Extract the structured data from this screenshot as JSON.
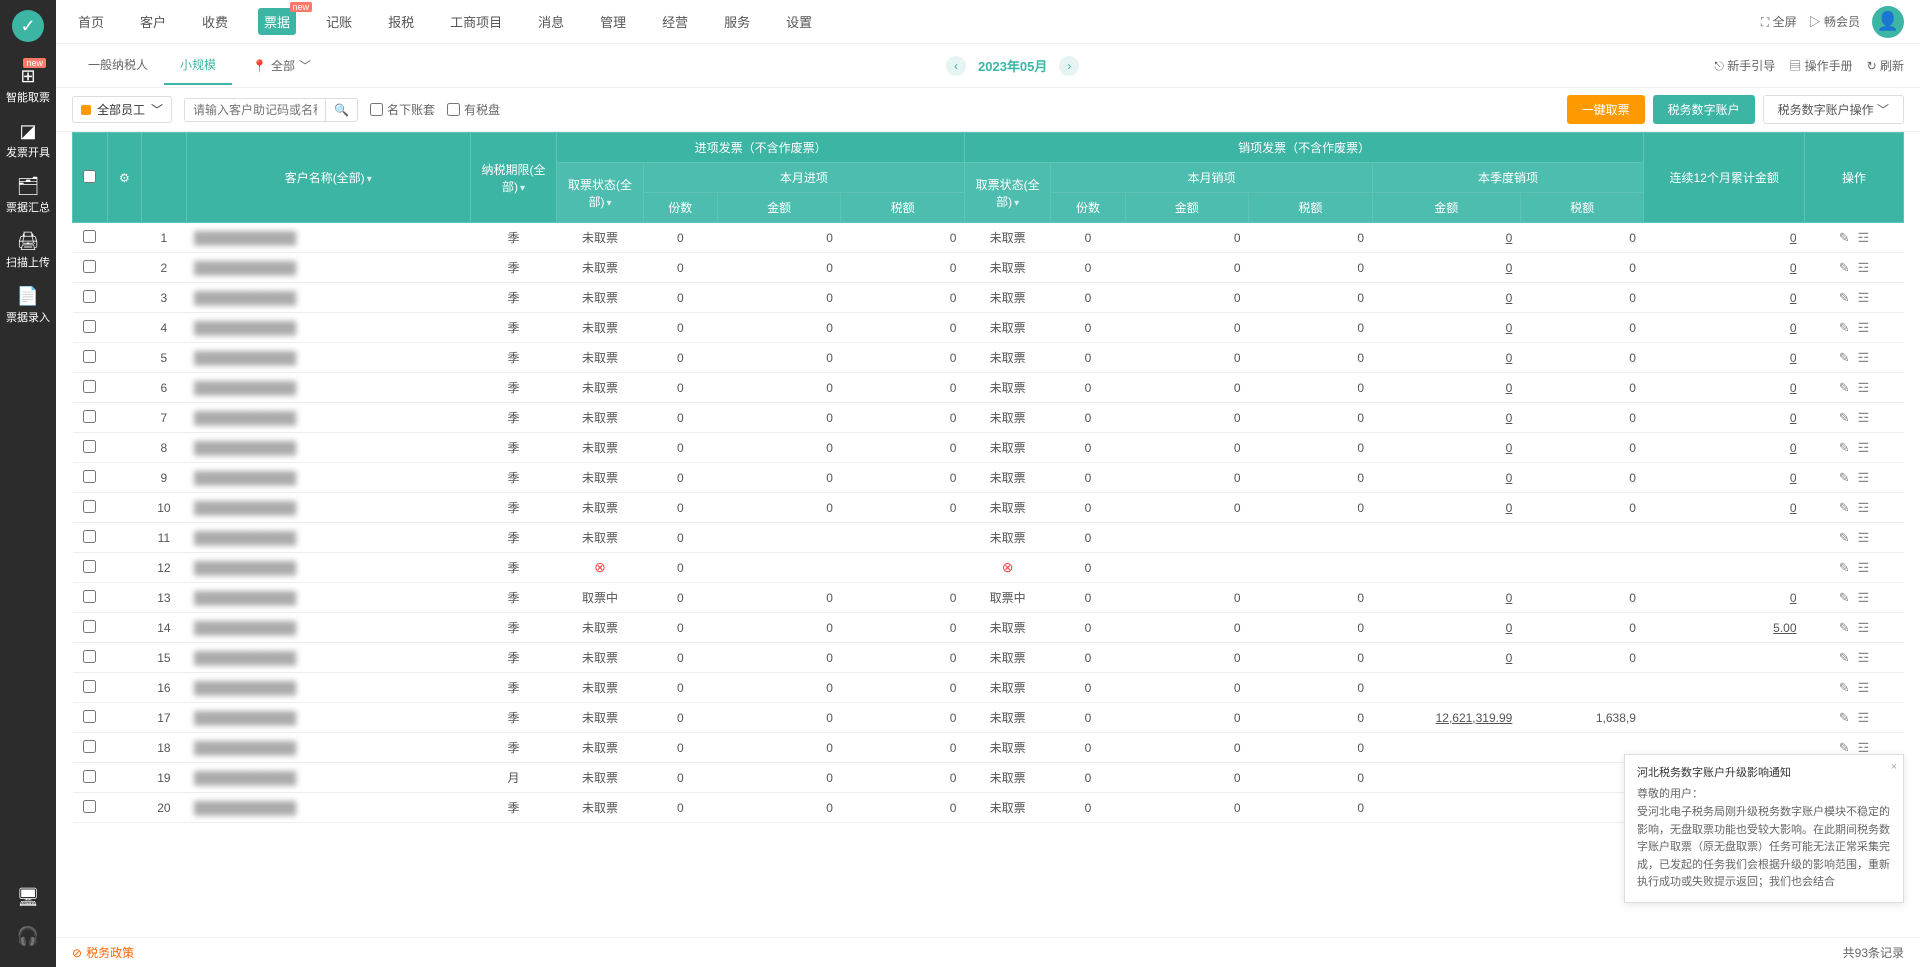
{
  "sidebar": {
    "items": [
      {
        "icon": "⊞",
        "label": "智能取票",
        "badge": "new"
      },
      {
        "icon": "◪",
        "label": "发票开具"
      },
      {
        "icon": "🗂",
        "label": "票据汇总"
      },
      {
        "icon": "🖨",
        "label": "扫描上传"
      },
      {
        "icon": "📄",
        "label": "票据录入"
      }
    ],
    "bottom": [
      {
        "icon": "🖥"
      },
      {
        "icon": "🎧"
      }
    ]
  },
  "topnav": {
    "items": [
      "首页",
      "客户",
      "收费",
      "票据",
      "记账",
      "报税",
      "工商项目",
      "消息",
      "管理",
      "经营",
      "服务",
      "设置"
    ],
    "active_index": 3,
    "badge_index": 3,
    "badge_text": "new",
    "right": {
      "fullscreen": "全屏",
      "member": "畅会员"
    }
  },
  "subnav": {
    "tabs": [
      "一般纳税人",
      "小规模"
    ],
    "active_tab": 1,
    "region_label": "全部",
    "period": "2023年05月",
    "right": {
      "guide": "新手引导",
      "manual": "操作手册",
      "refresh": "刷新"
    }
  },
  "toolbar": {
    "employee_select": "全部员工",
    "search_placeholder": "请输入客户助记码或名称",
    "chk1": "名下账套",
    "chk2": "有税盘",
    "btn_fetch": "一键取票",
    "btn_digital": "税务数字账户",
    "btn_ops": "税务数字账户操作"
  },
  "table": {
    "headers": {
      "customer": "客户名称(全部)",
      "tax_period": "纳税期限(全部)",
      "in_invoice_group": "进项发票（不含作废票）",
      "out_invoice_group": "销项发票（不含作废票）",
      "fetch_status": "取票状态(全部)",
      "month_in": "本月进项",
      "month_out": "本月销项",
      "quarter_out": "本季度销项",
      "count": "份数",
      "amount": "金额",
      "tax": "税额",
      "cumulative": "连续12个月累计金额",
      "actions": "操作"
    },
    "rows": [
      {
        "idx": 1,
        "period": "季",
        "status_in": "未取票",
        "status_out": "未取票",
        "c1": 0,
        "a1": "0",
        "t1": "0",
        "c2": 0,
        "a2": "0",
        "t2": "0",
        "qa": "0",
        "qt": "0",
        "cum": "0"
      },
      {
        "idx": 2,
        "period": "季",
        "status_in": "未取票",
        "status_out": "未取票",
        "c1": 0,
        "a1": "0",
        "t1": "0",
        "c2": 0,
        "a2": "0",
        "t2": "0",
        "qa": "0",
        "qt": "0",
        "cum": "0"
      },
      {
        "idx": 3,
        "period": "季",
        "status_in": "未取票",
        "status_out": "未取票",
        "c1": 0,
        "a1": "0",
        "t1": "0",
        "c2": 0,
        "a2": "0",
        "t2": "0",
        "qa": "0",
        "qt": "0",
        "cum": "0"
      },
      {
        "idx": 4,
        "period": "季",
        "status_in": "未取票",
        "status_out": "未取票",
        "c1": 0,
        "a1": "0",
        "t1": "0",
        "c2": 0,
        "a2": "0",
        "t2": "0",
        "qa": "0",
        "qt": "0",
        "cum": "0"
      },
      {
        "idx": 5,
        "period": "季",
        "status_in": "未取票",
        "status_out": "未取票",
        "c1": 0,
        "a1": "0",
        "t1": "0",
        "c2": 0,
        "a2": "0",
        "t2": "0",
        "qa": "0",
        "qt": "0",
        "cum": "0"
      },
      {
        "idx": 6,
        "period": "季",
        "status_in": "未取票",
        "status_out": "未取票",
        "c1": 0,
        "a1": "0",
        "t1": "0",
        "c2": 0,
        "a2": "0",
        "t2": "0",
        "qa": "0",
        "qt": "0",
        "cum": "0"
      },
      {
        "idx": 7,
        "period": "季",
        "status_in": "未取票",
        "status_out": "未取票",
        "c1": 0,
        "a1": "0",
        "t1": "0",
        "c2": 0,
        "a2": "0",
        "t2": "0",
        "qa": "0",
        "qt": "0",
        "cum": "0"
      },
      {
        "idx": 8,
        "period": "季",
        "status_in": "未取票",
        "status_out": "未取票",
        "c1": 0,
        "a1": "0",
        "t1": "0",
        "c2": 0,
        "a2": "0",
        "t2": "0",
        "qa": "0",
        "qt": "0",
        "cum": "0"
      },
      {
        "idx": 9,
        "period": "季",
        "status_in": "未取票",
        "status_out": "未取票",
        "c1": 0,
        "a1": "0",
        "t1": "0",
        "c2": 0,
        "a2": "0",
        "t2": "0",
        "qa": "0",
        "qt": "0",
        "cum": "0"
      },
      {
        "idx": 10,
        "period": "季",
        "status_in": "未取票",
        "status_out": "未取票",
        "c1": 0,
        "a1": "0",
        "t1": "0",
        "c2": 0,
        "a2": "0",
        "t2": "0",
        "qa": "0",
        "qt": "0",
        "cum": "0"
      },
      {
        "idx": 11,
        "period": "季",
        "status_in": "未取票",
        "status_out": "未取票",
        "c1": 0,
        "a1": "",
        "t1": "",
        "c2": 0,
        "a2": "",
        "t2": "",
        "qa": "",
        "qt": "",
        "cum": ""
      },
      {
        "idx": 12,
        "period": "季",
        "status_in": "error",
        "status_out": "error",
        "c1": 0,
        "a1": "",
        "t1": "",
        "c2": 0,
        "a2": "",
        "t2": "",
        "qa": "",
        "qt": "",
        "cum": ""
      },
      {
        "idx": 13,
        "period": "季",
        "status_in": "取票中",
        "status_out": "取票中",
        "c1": 0,
        "a1": "0",
        "t1": "0",
        "c2": 0,
        "a2": "0",
        "t2": "0",
        "qa": "0",
        "qt": "0",
        "cum": "0"
      },
      {
        "idx": 14,
        "period": "季",
        "status_in": "未取票",
        "status_out": "未取票",
        "c1": 0,
        "a1": "0",
        "t1": "0",
        "c2": 0,
        "a2": "0",
        "t2": "0",
        "qa": "0",
        "qt": "0",
        "cum": "5.00"
      },
      {
        "idx": 15,
        "period": "季",
        "status_in": "未取票",
        "status_out": "未取票",
        "c1": 0,
        "a1": "0",
        "t1": "0",
        "c2": 0,
        "a2": "0",
        "t2": "0",
        "qa": "0",
        "qt": "0",
        "cum": ""
      },
      {
        "idx": 16,
        "period": "季",
        "status_in": "未取票",
        "status_out": "未取票",
        "c1": 0,
        "a1": "0",
        "t1": "0",
        "c2": 0,
        "a2": "0",
        "t2": "0",
        "qa": "",
        "qt": "",
        "cum": ""
      },
      {
        "idx": 17,
        "period": "季",
        "status_in": "未取票",
        "status_out": "未取票",
        "c1": 0,
        "a1": "0",
        "t1": "0",
        "c2": 0,
        "a2": "0",
        "t2": "0",
        "qa": "12,621,319.99",
        "qt": "1,638,9",
        "cum": ""
      },
      {
        "idx": 18,
        "period": "季",
        "status_in": "未取票",
        "status_out": "未取票",
        "c1": 0,
        "a1": "0",
        "t1": "0",
        "c2": 0,
        "a2": "0",
        "t2": "0",
        "qa": "",
        "qt": "",
        "cum": ""
      },
      {
        "idx": 19,
        "period": "月",
        "status_in": "未取票",
        "status_out": "未取票",
        "c1": 0,
        "a1": "0",
        "t1": "0",
        "c2": 0,
        "a2": "0",
        "t2": "0",
        "qa": "",
        "qt": "",
        "cum": ""
      },
      {
        "idx": 20,
        "period": "季",
        "status_in": "未取票",
        "status_out": "未取票",
        "c1": 0,
        "a1": "0",
        "t1": "0",
        "c2": 0,
        "a2": "0",
        "t2": "0",
        "qa": "",
        "qt": "",
        "cum": ""
      }
    ]
  },
  "footer": {
    "policy": "税务政策",
    "total": "共93条记录"
  },
  "notice": {
    "title": "河北税务数字账户升级影响通知",
    "greeting": "尊敬的用户：",
    "body": "受河北电子税务局刚升级税务数字账户模块不稳定的影响，无盘取票功能也受较大影响。在此期间税务数字账户取票（原无盘取票）任务可能无法正常采集完成，已发起的任务我们会根据升级的影响范围，重新执行成功或失败提示返回；我们也会结合"
  },
  "colors": {
    "primary": "#3cb5a5",
    "orange": "#f90",
    "badge": "#f76"
  }
}
